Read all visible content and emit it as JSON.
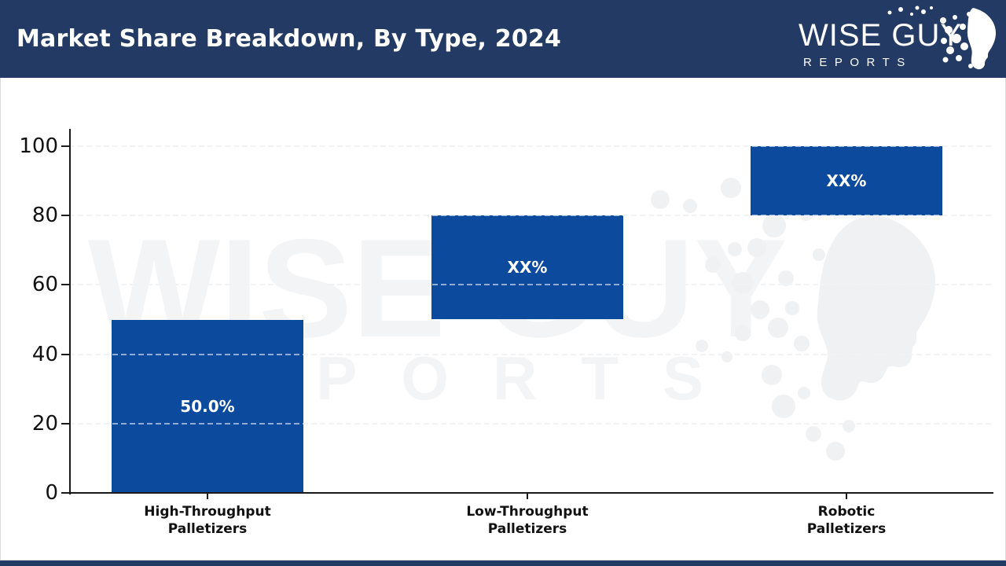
{
  "header": {
    "title": "Market Share Breakdown, By Type, 2024",
    "logo": {
      "name_line": "WISE GUY",
      "sub_line": "REPORTS"
    }
  },
  "watermark": {
    "line1": "WISE GUY",
    "line2": "REPORTS"
  },
  "chart_data": {
    "type": "bar",
    "subtype": "floating-waterfall-share",
    "title": "Market Share Breakdown, By Type, 2024",
    "categories": [
      "High-Throughput\nPalletizers",
      "Low-Throughput\nPalletizers",
      "Robotic\nPalletizers"
    ],
    "segments": [
      {
        "category": "High-Throughput Palletizers",
        "start": 0,
        "end": 50,
        "label": "50.0%"
      },
      {
        "category": "Low-Throughput Palletizers",
        "start": 50,
        "end": 80,
        "label": "XX%"
      },
      {
        "category": "Robotic Palletizers",
        "start": 80,
        "end": 100,
        "label": "XX%"
      }
    ],
    "xlabel": "",
    "ylabel": "",
    "ylim": [
      0,
      100
    ],
    "yticks": [
      0,
      20,
      40,
      60,
      80,
      100
    ],
    "grid": "horizontal-dashed",
    "legend": "none",
    "bar_color": "#0C4A9E",
    "bar_label_color": "#FFFFFF"
  },
  "colors": {
    "header_bg": "#223A64",
    "footer_bg": "#223A64",
    "axis": "#1A1A1A",
    "grid_line": "#E3E5E8",
    "watermark": "#F3F4F6"
  }
}
